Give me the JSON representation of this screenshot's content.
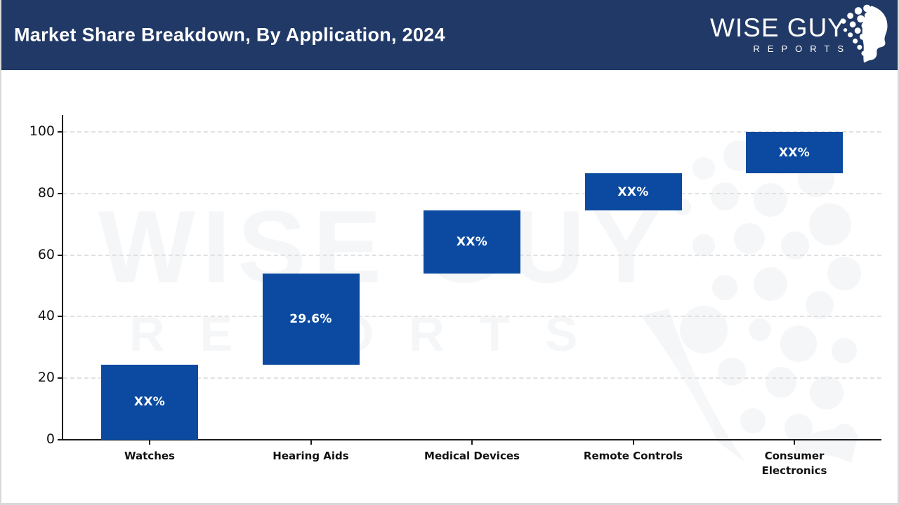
{
  "header": {
    "title": "Market Share Breakdown, By Application, 2024",
    "logo": {
      "name": "WISE GUY",
      "tagline": "REPORTS"
    }
  },
  "watermark": {
    "line1": "WISE GUY",
    "line2": "REPORTS"
  },
  "colors": {
    "header_bg": "#213966",
    "bar": "#0b4aa0",
    "axis": "#1a1a1a",
    "grid": "#e1e1e1",
    "text": "#111111",
    "bar_label": "#ffffff",
    "page_border": "#d9d9d9"
  },
  "chart_data": {
    "type": "bar",
    "subtype": "floating-waterfall",
    "title": "Market Share Breakdown, By Application, 2024",
    "categories": [
      "Watches",
      "Hearing Aids",
      "Medical Devices",
      "Remote Controls",
      "Consumer Electronics"
    ],
    "series": [
      {
        "name": "Market share (%)",
        "segments": [
          {
            "category": "Watches",
            "start": 0,
            "end": 24.4,
            "label": "XX%"
          },
          {
            "category": "Hearing Aids",
            "start": 24.4,
            "end": 54.0,
            "label": "29.6%"
          },
          {
            "category": "Medical Devices",
            "start": 54.0,
            "end": 74.5,
            "label": "XX%"
          },
          {
            "category": "Remote Controls",
            "start": 74.5,
            "end": 86.5,
            "label": "XX%"
          },
          {
            "category": "Consumer Electronics",
            "start": 86.5,
            "end": 100,
            "label": "XX%"
          }
        ]
      }
    ],
    "xlabel": "",
    "ylabel": "",
    "ylim": [
      0,
      100
    ],
    "yticks": [
      0,
      20,
      40,
      60,
      80,
      100
    ],
    "grid": "horizontal-dashed",
    "legend": "none",
    "bar_color": "#0b4aa0",
    "label_color": "#ffffff"
  }
}
